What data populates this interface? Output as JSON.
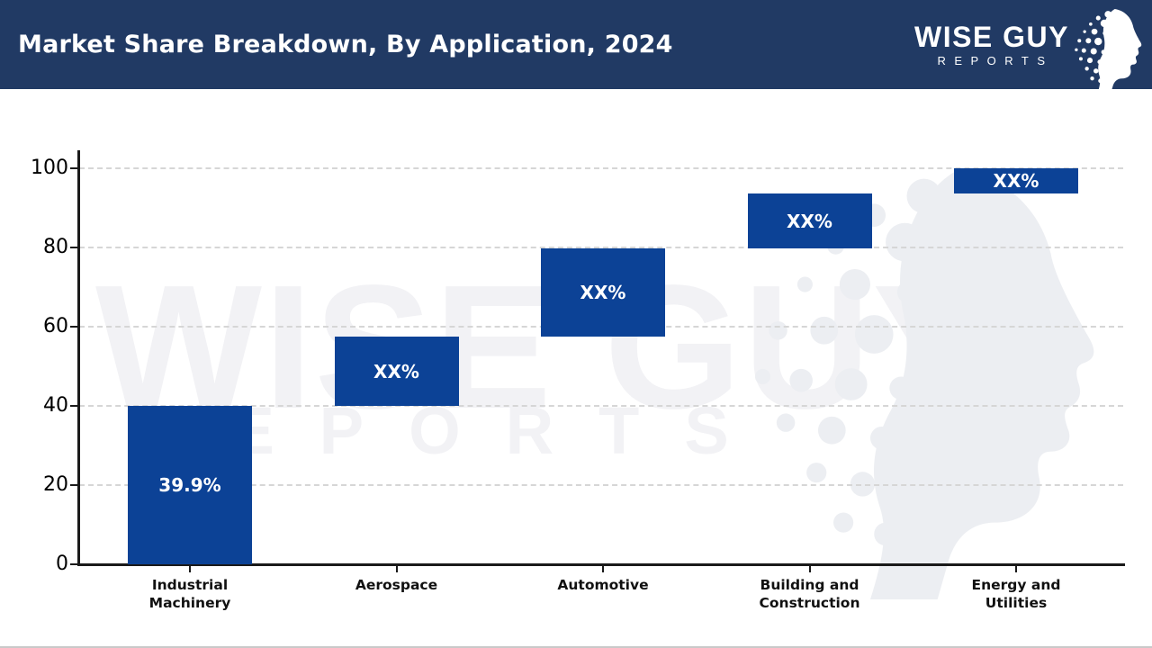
{
  "header": {
    "title": "Market Share Breakdown, By Application, 2024",
    "logo": {
      "line1": "WISE GUY",
      "line2": "REPORTS"
    }
  },
  "watermark": {
    "line1": "WISE GUY",
    "line2": "REPORTS"
  },
  "chart_data": {
    "type": "bar",
    "variant": "waterfall",
    "title": "Market Share Breakdown, By Application, 2024",
    "categories": [
      "Industrial Machinery",
      "Aerospace",
      "Automotive",
      "Building and Construction",
      "Energy and Utilities"
    ],
    "category_label_lines": [
      [
        "Industrial",
        "Machinery"
      ],
      [
        "Aerospace"
      ],
      [
        "Automotive"
      ],
      [
        "Building and",
        "Construction"
      ],
      [
        "Energy and",
        "Utilities"
      ]
    ],
    "values": [
      39.9,
      17.6,
      22.3,
      13.8,
      6.4
    ],
    "cumulative_start": [
      0,
      39.9,
      57.5,
      79.8,
      93.6
    ],
    "cumulative_end": [
      39.9,
      57.5,
      79.8,
      93.6,
      100
    ],
    "bar_labels": [
      "39.9%",
      "XX%",
      "XX%",
      "XX%",
      "XX%"
    ],
    "ylim": [
      0,
      100
    ],
    "yticks": [
      0,
      20,
      40,
      60,
      80,
      100
    ],
    "grid": "horizontal-dashed",
    "legend": "none",
    "bar_color": "#0c4296",
    "bar_label_color": "#ffffff",
    "header_color": "#213a64"
  }
}
